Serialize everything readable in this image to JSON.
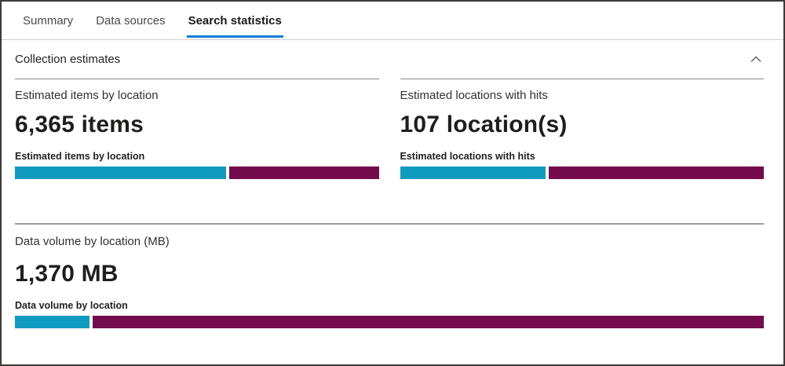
{
  "colors": {
    "accent_blue": "#0f7fd7",
    "bar_teal": "#0f9ac0",
    "bar_berry": "#740b4d"
  },
  "tabs": [
    {
      "label": "Summary",
      "active": false
    },
    {
      "label": "Data sources",
      "active": false
    },
    {
      "label": "Search statistics",
      "active": true
    }
  ],
  "section": {
    "title": "Collection estimates",
    "collapse_icon": "chevron-up-icon",
    "expanded": true
  },
  "stats": [
    {
      "label": "Estimated items by location",
      "value": "6,365 items",
      "chart_title": "Estimated items by location",
      "segments": [
        {
          "name": "teal",
          "color": "#0f9ac0",
          "pct": 58
        },
        {
          "name": "berry",
          "color": "#740b4d",
          "pct": 42
        }
      ]
    },
    {
      "label": "Estimated locations with hits",
      "value": "107 location(s)",
      "chart_title": "Estimated locations with hits",
      "segments": [
        {
          "name": "teal",
          "color": "#0f9ac0",
          "pct": 40
        },
        {
          "name": "berry",
          "color": "#740b4d",
          "pct": 60
        }
      ]
    },
    {
      "label": "Data volume by location (MB)",
      "value": "1,370 MB",
      "chart_title": "Data volume by location",
      "segments": [
        {
          "name": "teal",
          "color": "#0f9ac0",
          "pct": 10
        },
        {
          "name": "berry",
          "color": "#740b4d",
          "pct": 90
        }
      ]
    }
  ],
  "chart_data": [
    {
      "type": "bar",
      "title": "Estimated items by location",
      "total_label": "6,365 items",
      "segments_pct": [
        58,
        42
      ],
      "segment_colors": [
        "#0f9ac0",
        "#740b4d"
      ],
      "orientation": "horizontal-stacked"
    },
    {
      "type": "bar",
      "title": "Estimated locations with hits",
      "total_label": "107 location(s)",
      "segments_pct": [
        40,
        60
      ],
      "segment_colors": [
        "#0f9ac0",
        "#740b4d"
      ],
      "orientation": "horizontal-stacked"
    },
    {
      "type": "bar",
      "title": "Data volume by location",
      "total_label": "1,370 MB",
      "segments_pct": [
        10,
        90
      ],
      "segment_colors": [
        "#0f9ac0",
        "#740b4d"
      ],
      "orientation": "horizontal-stacked"
    }
  ]
}
